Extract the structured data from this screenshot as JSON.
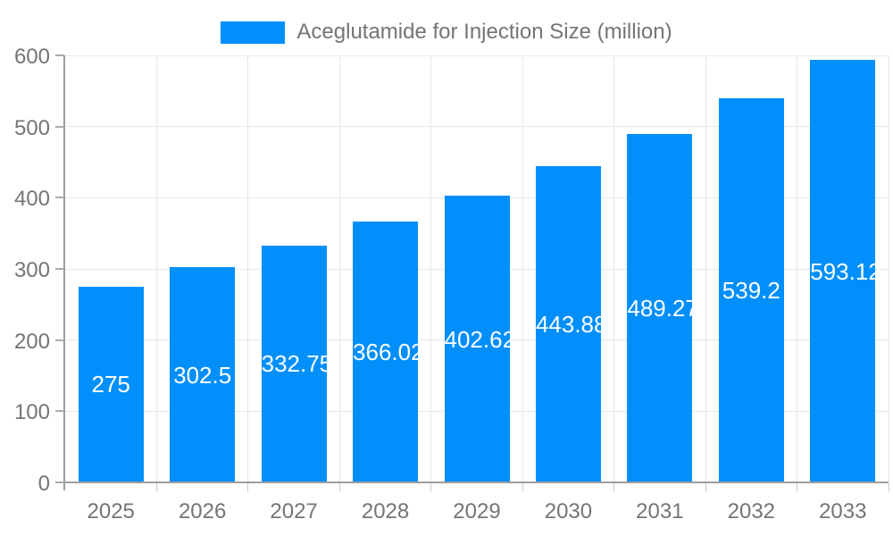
{
  "legend": {
    "label": "Aceglutamide for Injection Size (million)"
  },
  "colors": {
    "bar": "#008FFB",
    "value_label": "#ffffff",
    "axis_line": "#9e9e9e",
    "grid_line": "#e8e8e8",
    "tick_label": "#757575",
    "background": "#ffffff"
  },
  "chart_data": {
    "type": "bar",
    "title": "Aceglutamide for Injection Size (million)",
    "categories": [
      "2025",
      "2026",
      "2027",
      "2028",
      "2029",
      "2030",
      "2031",
      "2032",
      "2033"
    ],
    "series": [
      {
        "name": "Aceglutamide for Injection Size (million)",
        "values": [
          275,
          302.5,
          332.75,
          366.02,
          402.62,
          443.88,
          489.27,
          539.2,
          593.12
        ]
      }
    ],
    "value_labels": [
      "275",
      "302.5",
      "332.75",
      "366.02",
      "402.62",
      "443.88",
      "489.27",
      "539.2",
      "593.12"
    ],
    "xlabel": "",
    "ylabel": "",
    "ylim": [
      0,
      600
    ],
    "ytick_interval": 100,
    "ytick_labels": [
      "0",
      "100",
      "200",
      "300",
      "400",
      "500",
      "600"
    ],
    "grid": true,
    "legend_position": "top",
    "value_label_position": "center-inside"
  }
}
